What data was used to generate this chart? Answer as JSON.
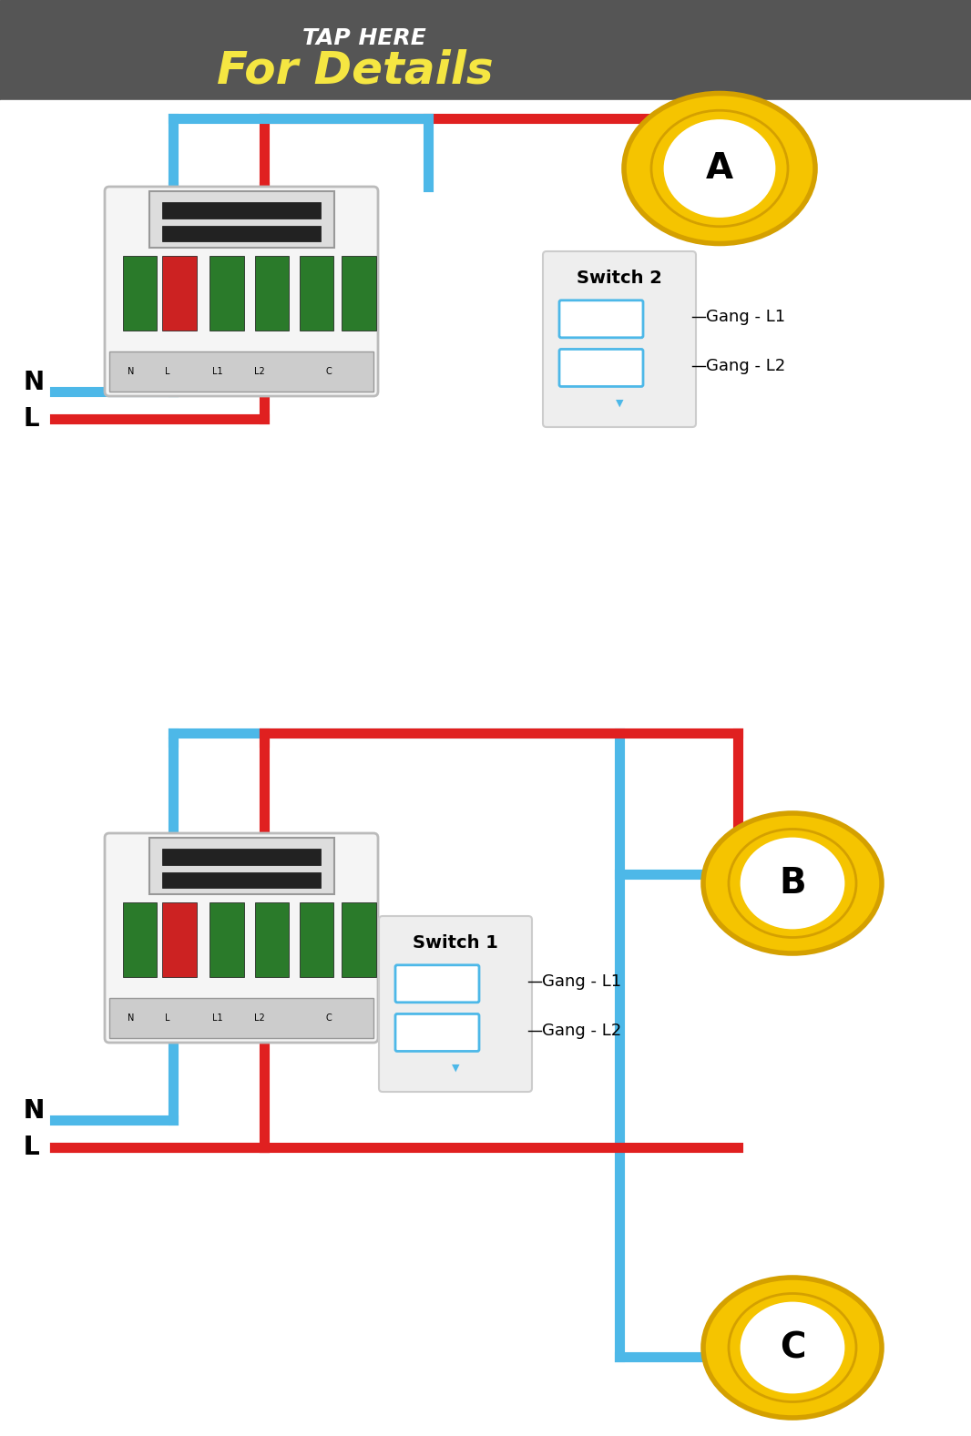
{
  "bg_top": "#555555",
  "bg_white": "#ffffff",
  "title_tap": "TAP HERE",
  "title_main": "For Details",
  "title_tap_color": "#ffffff",
  "title_main_color": "#f5e642",
  "wire_blue": "#4db8e8",
  "wire_red": "#e02020",
  "wire_lw": 8,
  "label_N": "N",
  "label_L": "L",
  "switch1_label": "Switch 1",
  "switch2_label": "Switch 2",
  "gang_l1": "Gang - L1",
  "gang_l2": "Gang - L2",
  "light_A": "A",
  "light_B": "B",
  "light_C": "C",
  "light_color": "#f5c400",
  "light_outline": "#d4a000",
  "module_fill": "#f0f0f0",
  "module_border": "#888888",
  "switch_fill": "#e8e8e8",
  "switch_border": "#aaaaaa",
  "gang_btn_border": "#4db8e8",
  "figsize": [
    10.66,
    15.77
  ],
  "dpi": 100
}
